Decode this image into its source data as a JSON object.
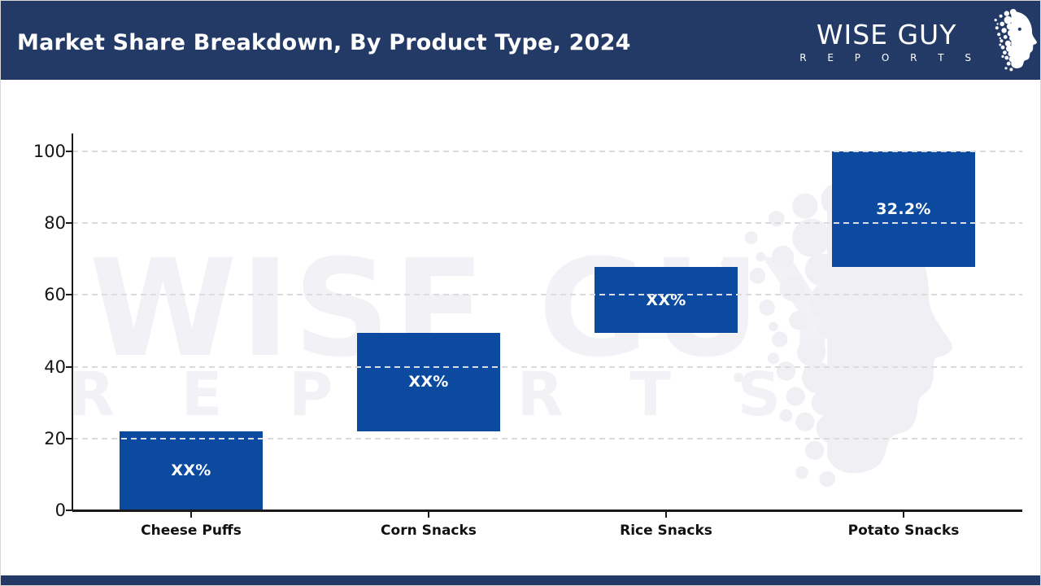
{
  "colors": {
    "header_navy": "#233a67",
    "bar_blue": "#0b4a9e",
    "grid_gray": "#dcdcdc",
    "watermark_gray": "#f2f2f6"
  },
  "header": {
    "title": "Market Share Breakdown, By Product Type, 2024",
    "logo_line1": "WISE GUY",
    "logo_line2": "R E P O R T S"
  },
  "watermark": {
    "line1": "WISE GUY",
    "line2": "R E P O R T S"
  },
  "chart_data": {
    "type": "bar",
    "subtype": "floating-segment-waterfall",
    "title": "Market Share Breakdown, By Product Type, 2024",
    "categories": [
      "Cheese Puffs",
      "Corn Snacks",
      "Rice Snacks",
      "Potato Snacks"
    ],
    "segments": [
      {
        "category": "Cheese Puffs",
        "start": 0,
        "end": 22,
        "label": "XX%"
      },
      {
        "category": "Corn Snacks",
        "start": 22,
        "end": 49.5,
        "label": "XX%"
      },
      {
        "category": "Rice Snacks",
        "start": 49.5,
        "end": 67.7,
        "label": "XX%"
      },
      {
        "category": "Potato Snacks",
        "start": 67.8,
        "end": 100,
        "label": "32.2%"
      }
    ],
    "yticks": [
      0,
      20,
      40,
      60,
      80,
      100
    ],
    "ylim": [
      0,
      105
    ],
    "xlabel": "",
    "ylabel": "",
    "grid": "horizontal-dashed",
    "legend": "none",
    "bar_color": "#0b4a9e",
    "bar_label_color": "#ffffff"
  }
}
